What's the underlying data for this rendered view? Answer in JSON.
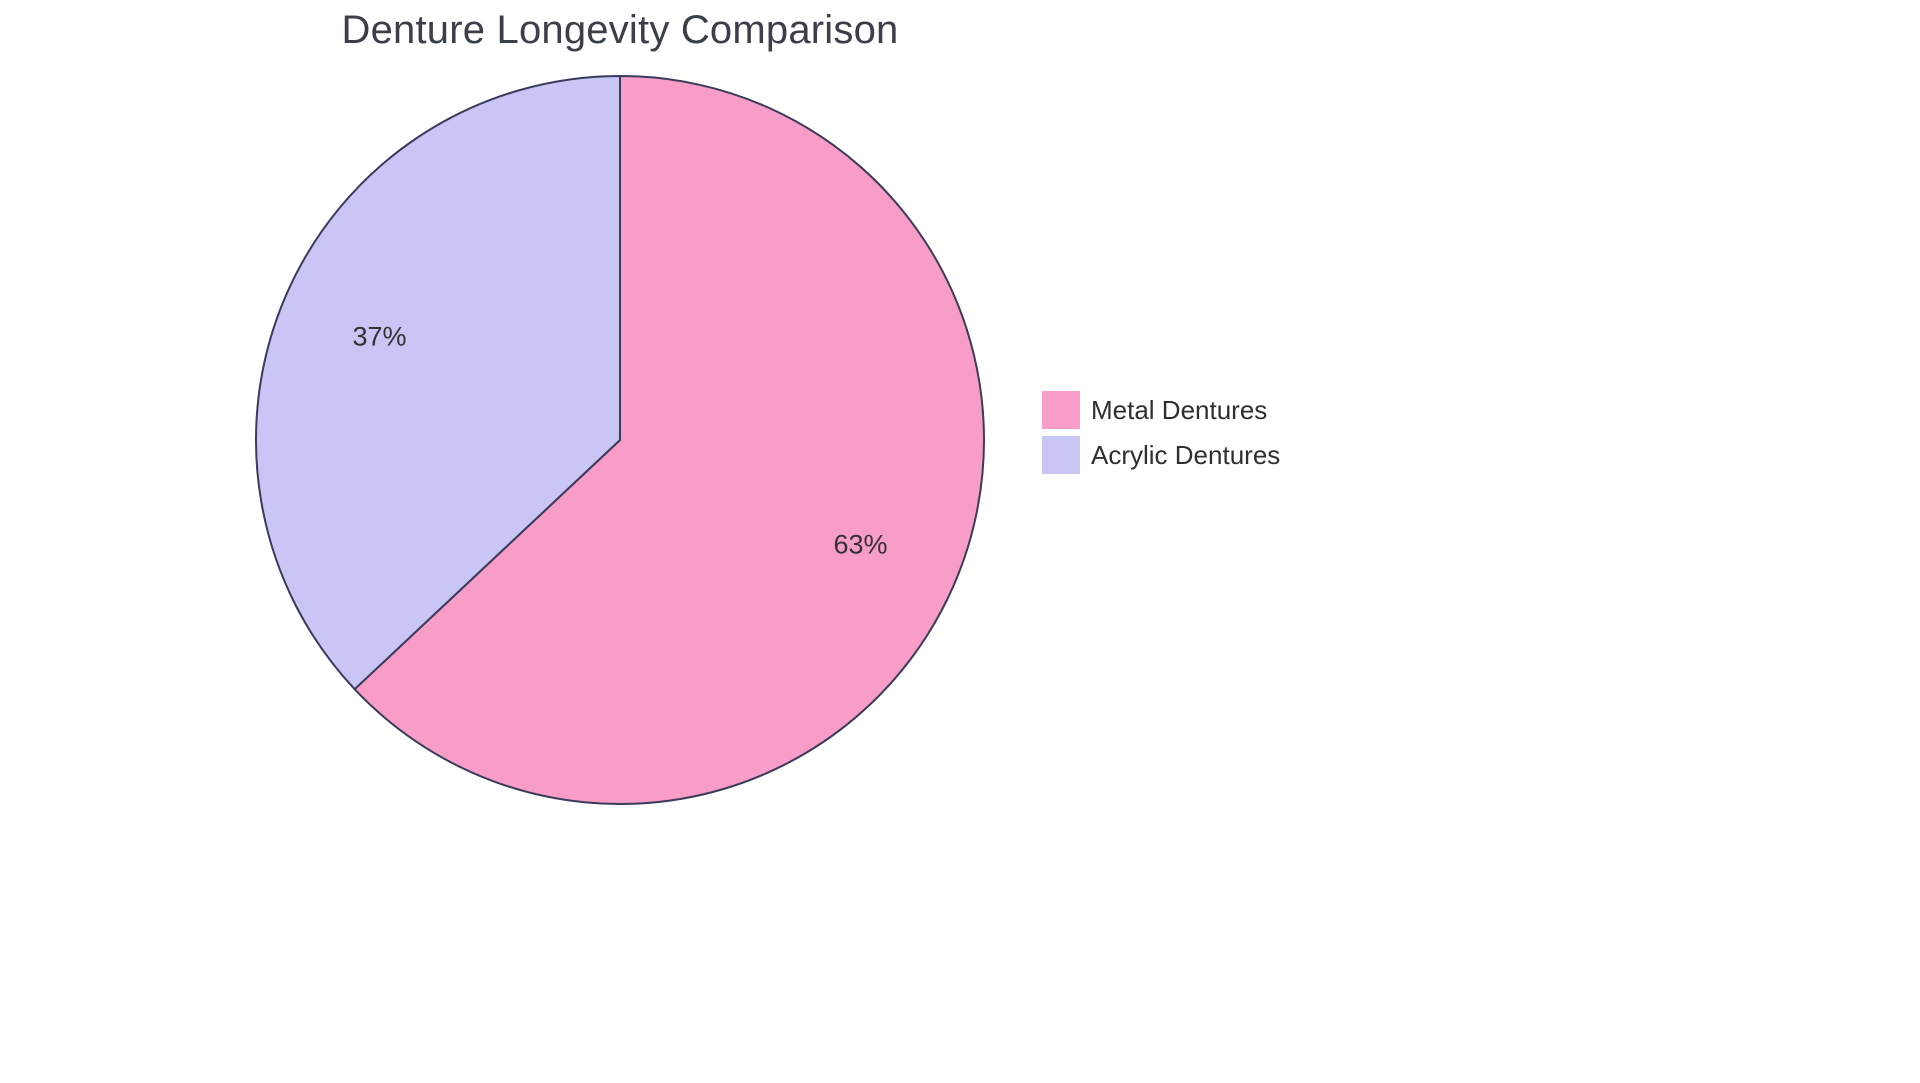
{
  "page": {
    "background": "#ffffff"
  },
  "chart_data": {
    "type": "pie",
    "title": "Denture Longevity Comparison",
    "labels": [
      "Metal Dentures",
      "Acrylic Dentures"
    ],
    "values": [
      63,
      37
    ],
    "value_labels": [
      "63%",
      "37%"
    ],
    "colors": [
      "#F89CC8",
      "#C9C5F4"
    ],
    "slice_border_color": "#3B3B5C",
    "slice_border_width": 2,
    "label_color": "#333333",
    "start_angle_deg": -90,
    "direction": "clockwise",
    "legend": {
      "position": "right",
      "items": [
        "Metal Dentures",
        "Acrylic Dentures"
      ]
    }
  }
}
